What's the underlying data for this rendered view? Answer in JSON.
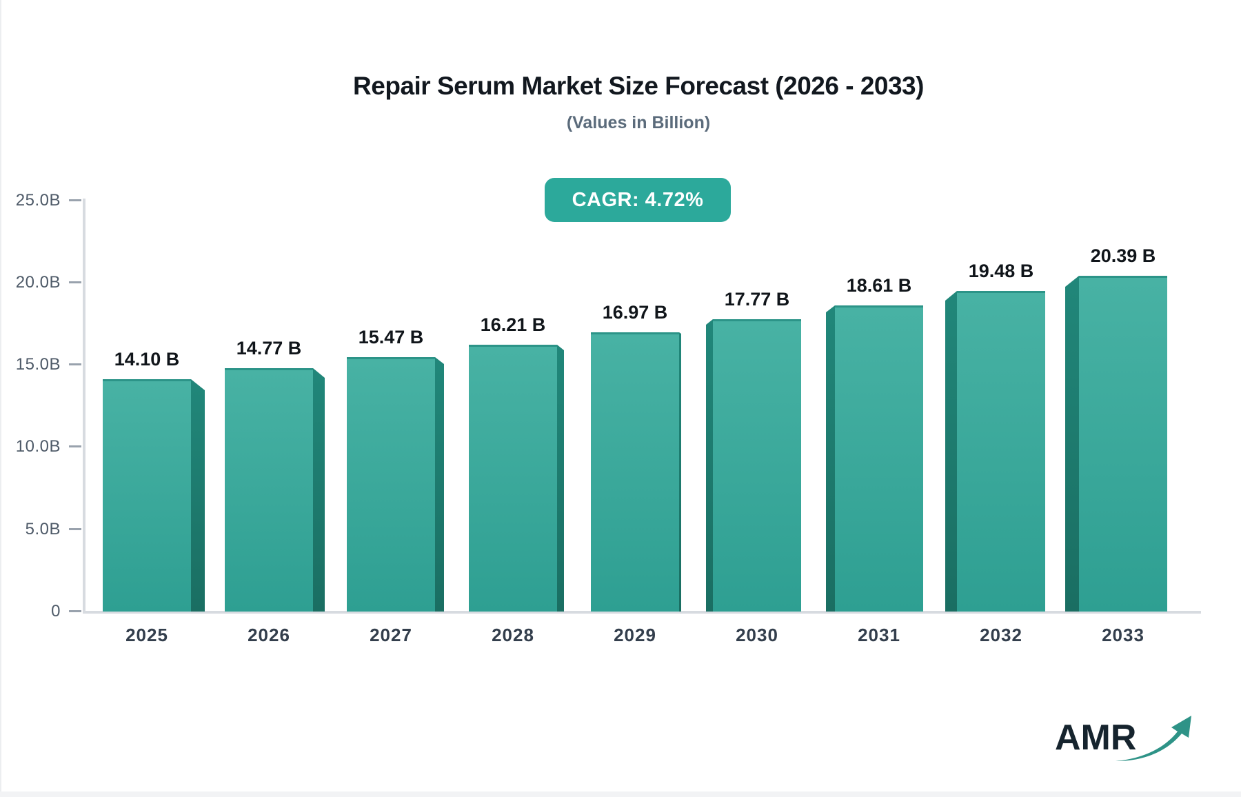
{
  "page": {
    "title": "Repair Serum Market Size Forecast (2026 - 2033)",
    "subtitle": "(Values in Billion)",
    "badge": {
      "label": "CAGR: 4.72%",
      "bg_color": "#2ca99b",
      "text_color": "#ffffff"
    },
    "logo": {
      "text": "AMR",
      "arrow_icon": "growth-arrow-icon",
      "text_color": "#16242e",
      "arrow_color": "#2e9387"
    }
  },
  "chart_data": {
    "type": "bar",
    "title": "Repair Serum Market Size Forecast (2026 - 2033)",
    "subtitle": "(Values in Billion)",
    "cagr_label": "CAGR: 4.72%",
    "categories": [
      "2025",
      "2026",
      "2027",
      "2028",
      "2029",
      "2030",
      "2031",
      "2032",
      "2033"
    ],
    "values": [
      14.1,
      14.77,
      15.47,
      16.21,
      16.97,
      17.77,
      18.61,
      19.48,
      20.39
    ],
    "value_labels": [
      "14.10 B",
      "14.77 B",
      "15.47 B",
      "16.21 B",
      "16.97 B",
      "17.77 B",
      "18.61 B",
      "19.48 B",
      "20.39 B"
    ],
    "xlabel": "",
    "ylabel": "",
    "ylim": [
      0,
      25
    ],
    "ytick_step": 5,
    "ytick_labels": [
      "0",
      "5.0B",
      "10.0B",
      "15.0B",
      "20.0B",
      "25.0B"
    ],
    "grid": false,
    "legend": false,
    "bar_style": "3d-perspective-center",
    "colors": {
      "bar_face_top": "#48b2a4",
      "bar_face_bottom": "#2e9f92",
      "bar_top_edge": "#2c9488",
      "bar_side": "#1f7e70",
      "axis_line": "#d7dbe0",
      "tick_label": "#4e5a68",
      "year_label": "#333e4c",
      "value_label": "#10151a"
    }
  }
}
